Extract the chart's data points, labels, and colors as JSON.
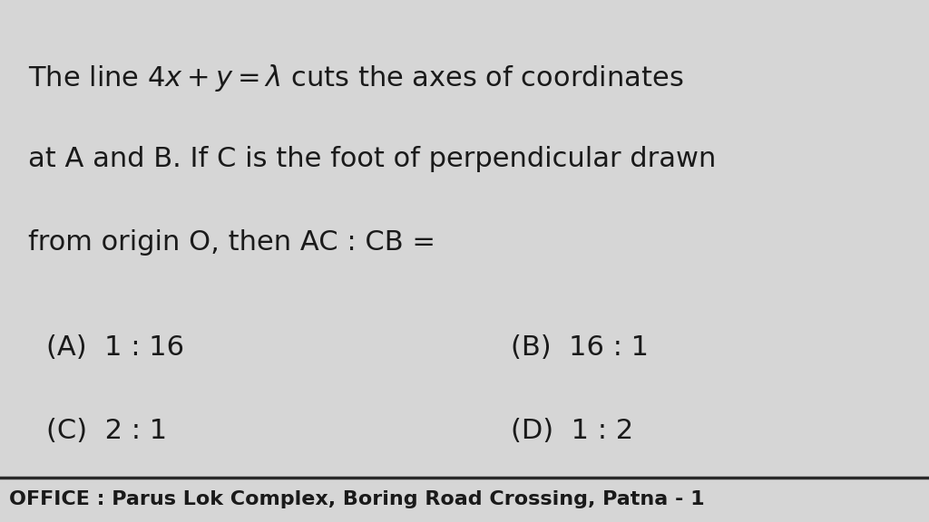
{
  "background_color": "#d6d6d6",
  "text_color": "#1a1a1a",
  "question_line1": "The line $4x + y = \\lambda$ cuts the axes of coordinates",
  "question_line2": "at A and B. If C is the foot of perpendicular drawn",
  "question_line3": "from origin O, then AC : CB =",
  "option_A": "(A)  1 : 16",
  "option_B": "(B)  16 : 1",
  "option_C": "(C)  2 : 1",
  "option_D": "(D)  1 : 2",
  "footer_text": "OFFICE : Parus Lok Complex, Boring Road Crossing, Patna - 1",
  "footer_color": "#1a1a1a",
  "line_color": "#2a2a2a",
  "question_fontsize": 22,
  "option_fontsize": 22,
  "footer_fontsize": 16
}
